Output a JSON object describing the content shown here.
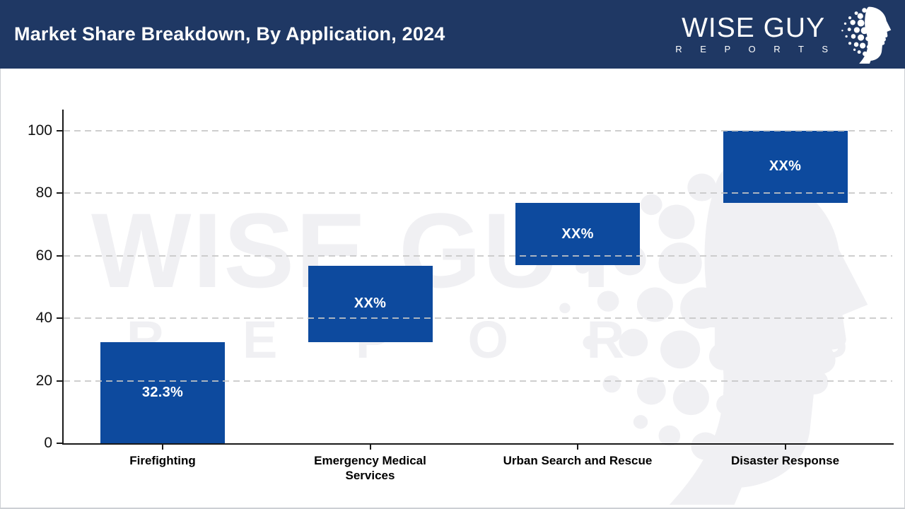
{
  "header": {
    "title": "Market Share Breakdown, By Application, 2024",
    "logo": {
      "wordmark": "WISE GUY",
      "tagline": "R E P O R T S"
    }
  },
  "watermark": {
    "wordmark": "WISE GUY",
    "tagline": "R E P O R T S"
  },
  "chart_data": {
    "type": "bar",
    "subtype": "waterfall",
    "title": "Market Share Breakdown, By Application, 2024",
    "categories": [
      "Firefighting",
      "Emergency Medical Services",
      "Urban Search and Rescue",
      "Disaster Response"
    ],
    "segments": [
      {
        "category": "Firefighting",
        "start": 0,
        "end": 32.3,
        "label": "32.3%"
      },
      {
        "category": "Emergency Medical Services",
        "start": 32.3,
        "end": 56.9,
        "label": "XX%"
      },
      {
        "category": "Urban Search and Rescue",
        "start": 56.9,
        "end": 77.0,
        "label": "XX%"
      },
      {
        "category": "Disaster Response",
        "start": 77.0,
        "end": 100.0,
        "label": "XX%"
      }
    ],
    "yticks": [
      0,
      20,
      40,
      60,
      80,
      100
    ],
    "ylim": [
      0,
      107
    ],
    "grid": "horizontal-dashed",
    "legend": "none",
    "colors": {
      "bar": "#0d4a9e",
      "bar_label": "#ffffff",
      "axis": "#1a1a1a",
      "gridline": "#d9d9d9",
      "header_bg": "#1f3864",
      "watermark": "#f0f0f3"
    }
  }
}
